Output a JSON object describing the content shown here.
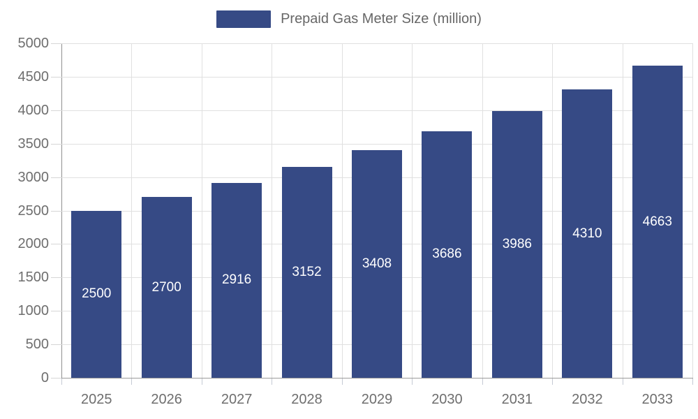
{
  "chart_data": {
    "type": "bar",
    "title": "",
    "legend": {
      "position": "top-center",
      "entries": [
        "Prepaid Gas Meter Size (million)"
      ]
    },
    "categories": [
      "2025",
      "2026",
      "2027",
      "2028",
      "2029",
      "2030",
      "2031",
      "2032",
      "2033"
    ],
    "series": [
      {
        "name": "Prepaid Gas Meter Size (million)",
        "values": [
          2500,
          2700,
          2916,
          3152,
          3408,
          3686,
          3986,
          4310,
          4663
        ]
      }
    ],
    "xlabel": "",
    "ylabel": "",
    "ylim": [
      0,
      5000
    ],
    "ytick_step": 500,
    "grid": true,
    "bar_labels_inside": true,
    "colors": {
      "bar": "#364A85",
      "bar_label": "#ffffff",
      "grid": "#e0e0e0",
      "axis": "#8f8f8f",
      "tick_text": "#6e6e6e",
      "legend_text": "#676767"
    }
  }
}
